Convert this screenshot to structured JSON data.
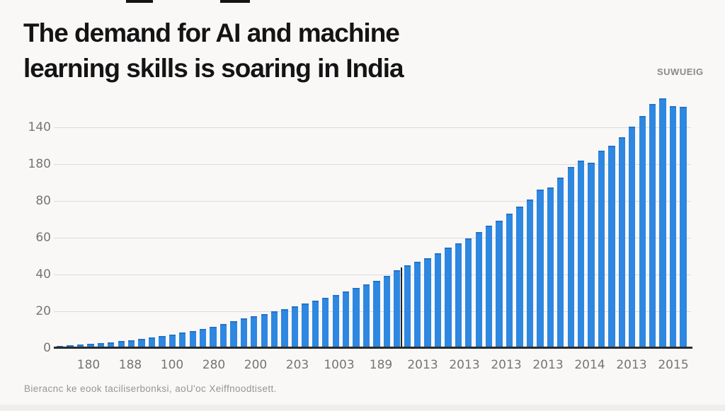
{
  "page": {
    "title_line1": "The demand for AI and machine",
    "title_line2": "learning skills is soaring in India",
    "logo_text": "SUWUEIG",
    "footnote": "Bieracnc ke eook taciliserbonksi, aoU'oc Xeiffnoodtisett.",
    "colors": {
      "bar": "#2e87e0",
      "background": "#f9f8f7",
      "gridline": "#dcdbda",
      "axis_line": "#2b2b2b",
      "tick_label": "#757575",
      "title": "#141414"
    }
  },
  "chart_data": {
    "type": "bar",
    "title": "The demand for AI and machine learning skills is soaring in India",
    "xlabel": "",
    "ylabel": "",
    "grid": true,
    "legend": "none",
    "ylim": [
      0,
      145
    ],
    "y_tick_labels": [
      "140",
      "180",
      "80",
      "60",
      "40",
      "20",
      "0"
    ],
    "x_tick_labels": [
      "180",
      "188",
      "100",
      "280",
      "200",
      "203",
      "1003",
      "189",
      "2013",
      "2013",
      "2013",
      "2013",
      "2014",
      "2013",
      "2015"
    ],
    "bar_color": "#2e87e0",
    "values": [
      1.2,
      1.5,
      1.9,
      2.3,
      2.7,
      3.1,
      3.8,
      4.2,
      5.0,
      5.8,
      6.5,
      7.3,
      8.5,
      9.2,
      10.4,
      11.5,
      13.1,
      14.6,
      16.2,
      17.3,
      18.5,
      20.0,
      21.2,
      22.7,
      24.2,
      25.8,
      27.3,
      28.8,
      30.8,
      32.7,
      34.6,
      36.5,
      39.2,
      42.3,
      45.0,
      46.9,
      48.8,
      51.5,
      54.6,
      56.9,
      59.6,
      63.1,
      66.5,
      69.2,
      73.1,
      76.9,
      80.8,
      86.2,
      87.3,
      92.7,
      98.5,
      101.9,
      100.8,
      107.3,
      110.0,
      114.6,
      120.4,
      126.2,
      132.7,
      135.8,
      131.5,
      131.2
    ],
    "annotation": {
      "type": "vertical-marker-line",
      "after_bar_index": 33
    }
  }
}
